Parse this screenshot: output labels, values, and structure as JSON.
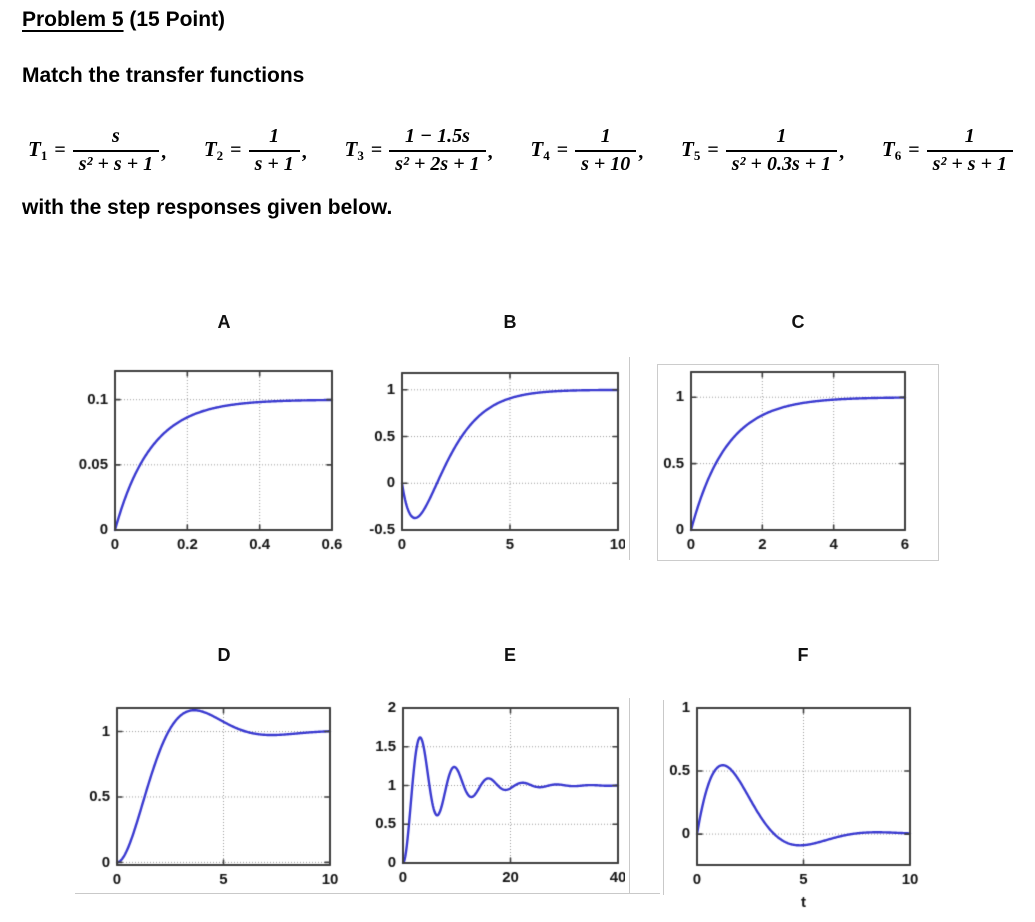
{
  "page": {
    "title_underlined": "Problem 5",
    "title_rest": " (15 Point)",
    "intro": "Match the transfer functions",
    "outro": "with the step responses given below."
  },
  "transfer_functions": {
    "eq": "=",
    "separator": ",",
    "items": [
      {
        "name": "T",
        "sub": "1",
        "num": "s",
        "den": "s² + s + 1"
      },
      {
        "name": "T",
        "sub": "2",
        "num": "1",
        "den": "s + 1"
      },
      {
        "name": "T",
        "sub": "3",
        "num": "1 − 1.5s",
        "den": "s² + 2s + 1"
      },
      {
        "name": "T",
        "sub": "4",
        "num": "1",
        "den": "s + 10"
      },
      {
        "name": "T",
        "sub": "5",
        "num": "1",
        "den": "s² + 0.3s + 1"
      },
      {
        "name": "T",
        "sub": "6",
        "num": "1",
        "den": "s² + s + 1"
      }
    ]
  },
  "plot_style": {
    "frame_color": "#3f3f3f",
    "grid_color": "#9b9b9b",
    "tick_color": "#151515",
    "title_color": "#111111"
  },
  "chart_data": [
    {
      "id": "A",
      "title": "A",
      "type": "line",
      "grid": true,
      "xlim": [
        0,
        0.6
      ],
      "ylim": [
        0,
        0.122
      ],
      "xticks": [
        0,
        0.2,
        0.4,
        0.6
      ],
      "xtick_labels": [
        "0",
        "0.2",
        "0.4",
        "0.6"
      ],
      "yticks": [
        0,
        0.05,
        0.1
      ],
      "ytick_labels": [
        "0",
        "0.05",
        "0.1"
      ],
      "xlabel": "",
      "line_color": "#3a3ad0",
      "model": {
        "kind": "first_order",
        "gain": 0.1,
        "tau": 0.1
      },
      "keypoints": [
        [
          0,
          0
        ],
        [
          0.05,
          0.039
        ],
        [
          0.1,
          0.063
        ],
        [
          0.2,
          0.086
        ],
        [
          0.3,
          0.095
        ],
        [
          0.4,
          0.098
        ],
        [
          0.6,
          0.1
        ]
      ]
    },
    {
      "id": "B",
      "title": "B",
      "type": "line",
      "grid": true,
      "xlim": [
        0,
        10
      ],
      "ylim": [
        -0.5,
        1.18
      ],
      "xticks": [
        0,
        5,
        10
      ],
      "xtick_labels": [
        "0",
        "5",
        "10"
      ],
      "yticks": [
        -0.5,
        0,
        0.5,
        1
      ],
      "ytick_labels": [
        "-0.5",
        "0",
        "0.5",
        "1"
      ],
      "xlabel": "",
      "line_color": "#3a3ad0",
      "model": {
        "kind": "undershoot",
        "c": 2.5
      },
      "keypoints": [
        [
          0,
          0
        ],
        [
          0.6,
          -0.37
        ],
        [
          1,
          -0.29
        ],
        [
          2,
          0.19
        ],
        [
          3,
          0.58
        ],
        [
          4,
          0.8
        ],
        [
          5,
          0.91
        ],
        [
          7,
          0.98
        ],
        [
          10,
          1
        ]
      ]
    },
    {
      "id": "C",
      "title": "C",
      "type": "line",
      "grid": true,
      "xlim": [
        0,
        6
      ],
      "ylim": [
        0,
        1.19
      ],
      "xticks": [
        0,
        2,
        4,
        6
      ],
      "xtick_labels": [
        "0",
        "2",
        "4",
        "6"
      ],
      "yticks": [
        0,
        0.5,
        1
      ],
      "ytick_labels": [
        "0",
        "0.5",
        "1"
      ],
      "xlabel": "",
      "line_color": "#3a3ad0",
      "model": {
        "kind": "first_order",
        "gain": 1,
        "tau": 1
      },
      "keypoints": [
        [
          0,
          0
        ],
        [
          1,
          0.63
        ],
        [
          2,
          0.86
        ],
        [
          3,
          0.95
        ],
        [
          4,
          0.98
        ],
        [
          6,
          1
        ]
      ]
    },
    {
      "id": "D",
      "title": "D",
      "type": "line",
      "grid": true,
      "xlim": [
        0,
        10
      ],
      "ylim": [
        -0.02,
        1.18
      ],
      "xticks": [
        0,
        5,
        10
      ],
      "xtick_labels": [
        "0",
        "5",
        "10"
      ],
      "yticks": [
        0,
        0.5,
        1
      ],
      "ytick_labels": [
        "0",
        "0.5",
        "1"
      ],
      "xlabel": "",
      "line_color": "#3a3ad0",
      "model": {
        "kind": "second_order",
        "zeta": 0.5,
        "wn": 1
      },
      "keypoints": [
        [
          0,
          0
        ],
        [
          1,
          0.34
        ],
        [
          2,
          0.85
        ],
        [
          3.6,
          1.16
        ],
        [
          5,
          1.05
        ],
        [
          7.3,
          0.97
        ],
        [
          10,
          1
        ]
      ]
    },
    {
      "id": "E",
      "title": "E",
      "type": "line",
      "grid": true,
      "xlim": [
        0,
        40
      ],
      "ylim": [
        0,
        2
      ],
      "xticks": [
        0,
        20,
        40
      ],
      "xtick_labels": [
        "0",
        "20",
        "40"
      ],
      "yticks": [
        0,
        0.5,
        1,
        1.5,
        2
      ],
      "ytick_labels": [
        "0",
        "0.5",
        "1",
        "1.5",
        "2"
      ],
      "xlabel": "",
      "line_color": "#3a3ad0",
      "model": {
        "kind": "second_order",
        "zeta": 0.15,
        "wn": 1
      },
      "keypoints": [
        [
          0,
          0
        ],
        [
          3.2,
          1.62
        ],
        [
          6.4,
          0.61
        ],
        [
          9.5,
          1.24
        ],
        [
          12.7,
          0.85
        ],
        [
          15.9,
          1.09
        ],
        [
          19.1,
          0.94
        ],
        [
          22.3,
          1.04
        ],
        [
          30,
          1
        ],
        [
          40,
          1
        ]
      ]
    },
    {
      "id": "F",
      "title": "F",
      "type": "line",
      "grid": true,
      "xlim": [
        0,
        10
      ],
      "ylim": [
        -0.245,
        1.0
      ],
      "xticks": [
        0,
        5,
        10
      ],
      "xtick_labels": [
        "0",
        "5",
        "10"
      ],
      "yticks": [
        0,
        0.5,
        1
      ],
      "ytick_labels": [
        "0",
        "0.5",
        "1"
      ],
      "xlabel": "t",
      "line_color": "#3a3ad0",
      "model": {
        "kind": "bandpass",
        "zeta": 0.5,
        "wn": 1
      },
      "keypoints": [
        [
          0,
          0
        ],
        [
          1.2,
          0.55
        ],
        [
          2,
          0.42
        ],
        [
          3,
          0.13
        ],
        [
          4.8,
          -0.09
        ],
        [
          7,
          -0.03
        ],
        [
          10,
          0
        ]
      ]
    }
  ]
}
